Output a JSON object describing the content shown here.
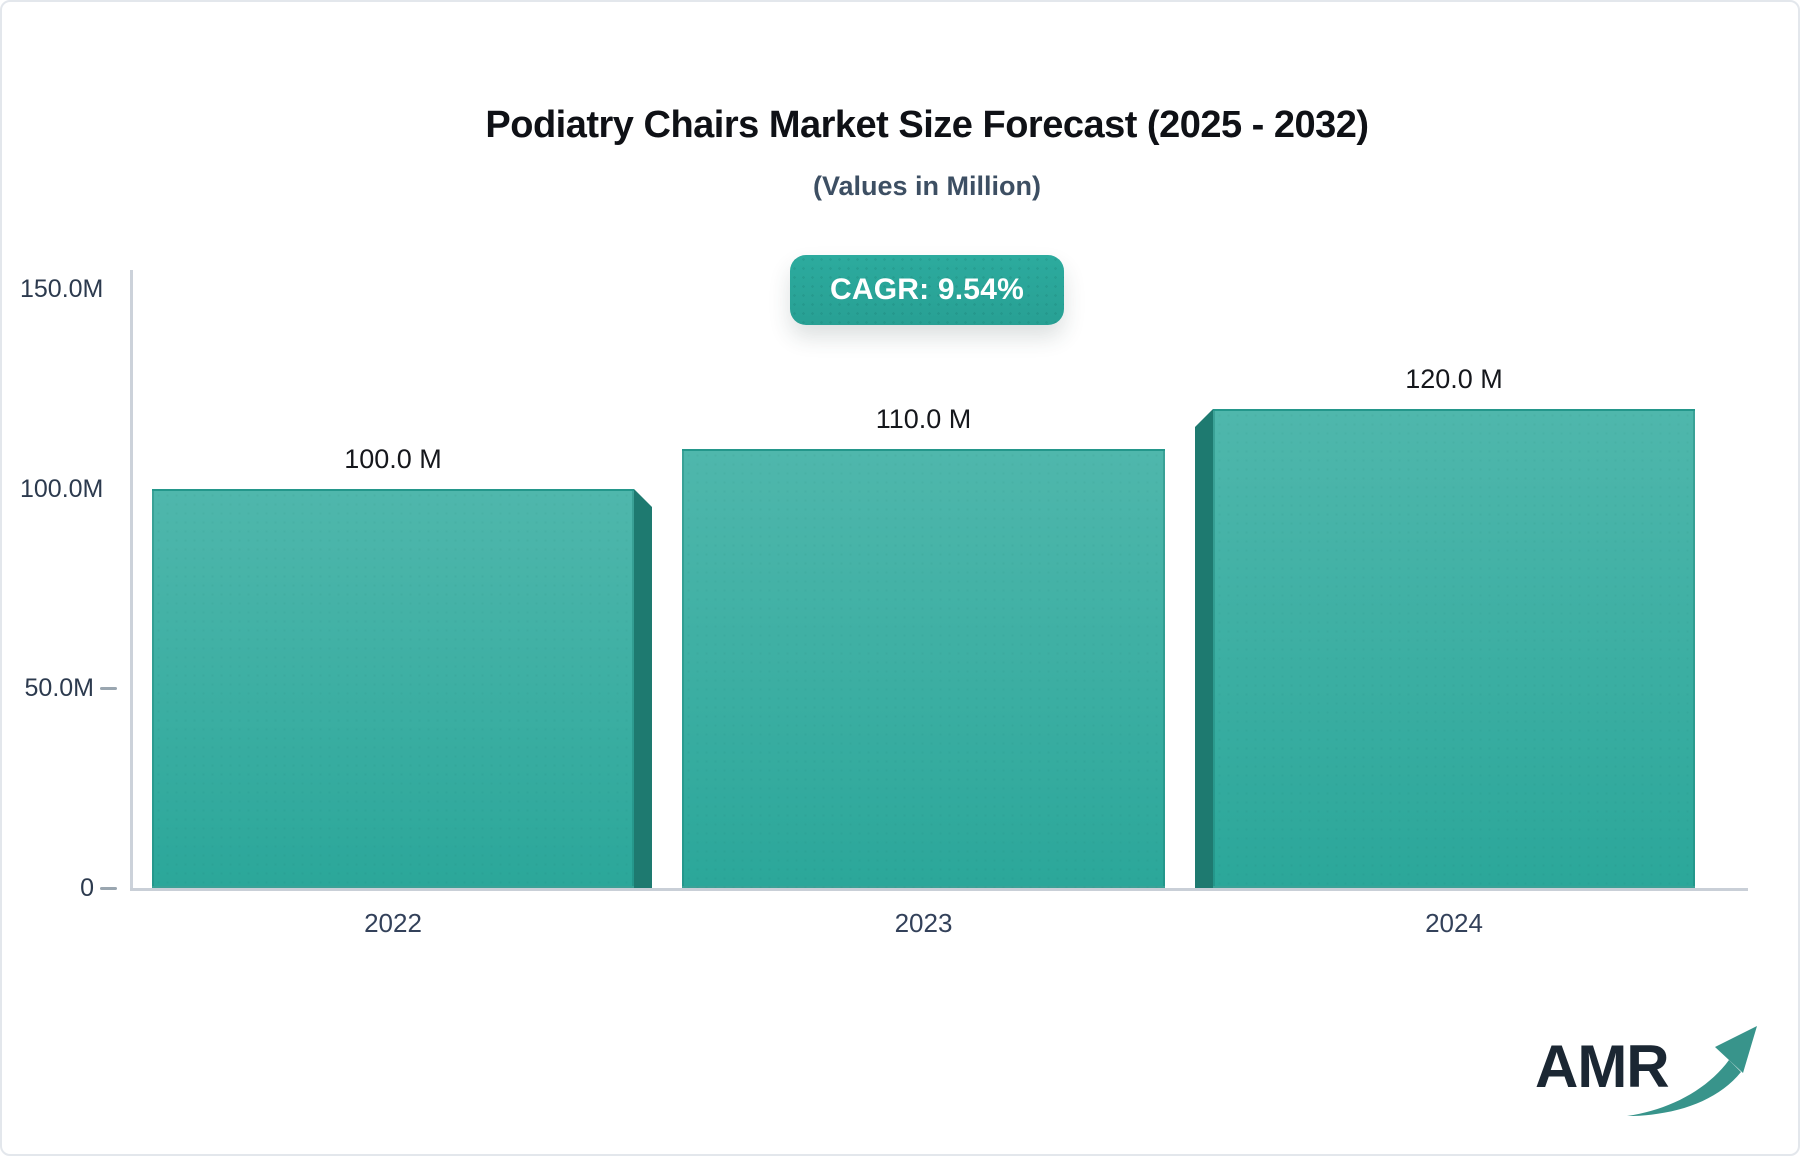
{
  "header": {
    "title": "Podiatry Chairs Market Size Forecast (2025 - 2032)",
    "subtitle": "(Values in Million)",
    "cagr_label": "CAGR: 9.54%"
  },
  "chart_data": {
    "type": "bar",
    "title": "Podiatry Chairs Market Size Forecast (2025 - 2032)",
    "subtitle": "(Values in Million)",
    "categories": [
      "2022",
      "2023",
      "2024"
    ],
    "values": [
      100.0,
      110.0,
      120.0
    ],
    "value_labels": [
      "100.0 M",
      "110.0 M",
      "120.0 M"
    ],
    "unit": "Million",
    "cagr_percent": 9.54,
    "xlabel": "",
    "ylabel": "",
    "ylim": [
      0,
      150
    ],
    "grid": false,
    "legend": "none",
    "yticks": [
      {
        "value": 150,
        "label": "150.0M",
        "dash": false
      },
      {
        "value": 100,
        "label": "100.0M",
        "dash": false
      },
      {
        "value": 50,
        "label": "50.0M",
        "dash": true
      },
      {
        "value": 0,
        "label": "0",
        "dash": true
      }
    ]
  },
  "branding": {
    "logo_text": "AMR"
  },
  "colors": {
    "accent": "#2aa79b",
    "bar_top": "#4fb7ac",
    "bar_bottom": "#2ba79a",
    "bar_side": "#1e7a70",
    "title_text": "#0f1116",
    "subtitle_text": "#3d4f63",
    "axis_text": "#2c3a4e",
    "axis_line": "#ccd2da",
    "logo_text": "#1b2733",
    "logo_arrow": "#38948b"
  }
}
